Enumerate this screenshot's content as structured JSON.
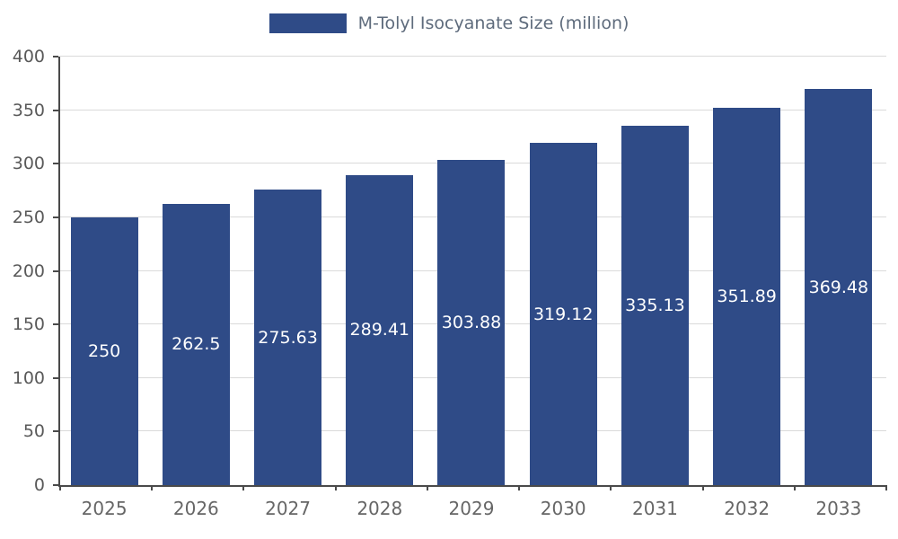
{
  "chart_data": {
    "type": "bar",
    "title": "M-Tolyl Isocyanate Size (million)",
    "categories": [
      "2025",
      "2026",
      "2027",
      "2028",
      "2029",
      "2030",
      "2031",
      "2032",
      "2033"
    ],
    "values": [
      250,
      262.5,
      275.63,
      289.41,
      303.88,
      319.12,
      335.13,
      351.89,
      369.48
    ],
    "value_labels": [
      "250",
      "262.5",
      "275.63",
      "289.41",
      "303.88",
      "319.12",
      "335.13",
      "351.89",
      "369.48"
    ],
    "xlabel": "",
    "ylabel": "",
    "ylim": [
      0,
      400
    ],
    "yticks": [
      0,
      50,
      100,
      150,
      200,
      250,
      300,
      350,
      400
    ],
    "bar_color": "#2f4b87",
    "grid": true,
    "legend_position": "top-center"
  }
}
